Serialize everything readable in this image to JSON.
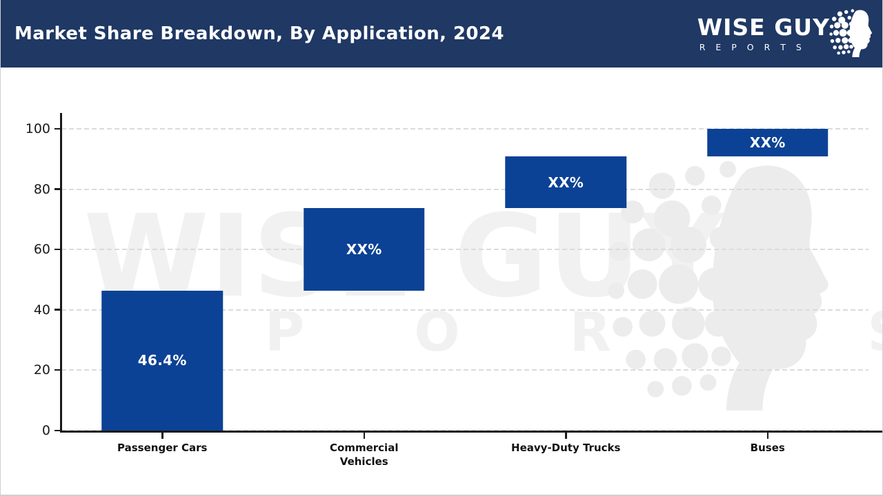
{
  "header": {
    "title": "Market Share Breakdown, By Application, 2024",
    "logo": {
      "line1": "WISE GUY",
      "line2": "R E P O R T S"
    }
  },
  "watermark": {
    "line1": "WISE GUY",
    "line2": "P O R T S"
  },
  "chart_data": {
    "type": "bar",
    "subtype": "waterfall",
    "title": "Market Share Breakdown, By Application, 2024",
    "categories": [
      "Passenger Cars",
      "Commercial Vehicles",
      "Heavy-Duty Trucks",
      "Buses"
    ],
    "segments": [
      {
        "category": "Passenger Cars",
        "start": 0,
        "end": 46.4,
        "label": "46.4%",
        "value_shown": true
      },
      {
        "category": "Commercial Vehicles",
        "start": 46.4,
        "end": 73.8,
        "label": "XX%",
        "value_shown": false
      },
      {
        "category": "Heavy-Duty Trucks",
        "start": 73.8,
        "end": 90.8,
        "label": "XX%",
        "value_shown": false
      },
      {
        "category": "Buses",
        "start": 90.8,
        "end": 100,
        "label": "XX%",
        "value_shown": false
      }
    ],
    "approx_values_pct": [
      46.4,
      27.4,
      17.0,
      9.2
    ],
    "yticks": [
      0,
      20,
      40,
      60,
      80,
      100
    ],
    "ylim": [
      0,
      100
    ],
    "grid": "horizontal dashed",
    "legend": "none",
    "bar_color": "#0b4295",
    "bar_label_color": "#ffffff"
  },
  "colors": {
    "header_bg": "#1f3864",
    "bar_blue": "#0b4295",
    "grid_gray": "#dbdbdb",
    "axis_black": "#1a1a1a",
    "watermark_gray": "#f1f1f1",
    "border_gray": "#cfcfcf"
  }
}
